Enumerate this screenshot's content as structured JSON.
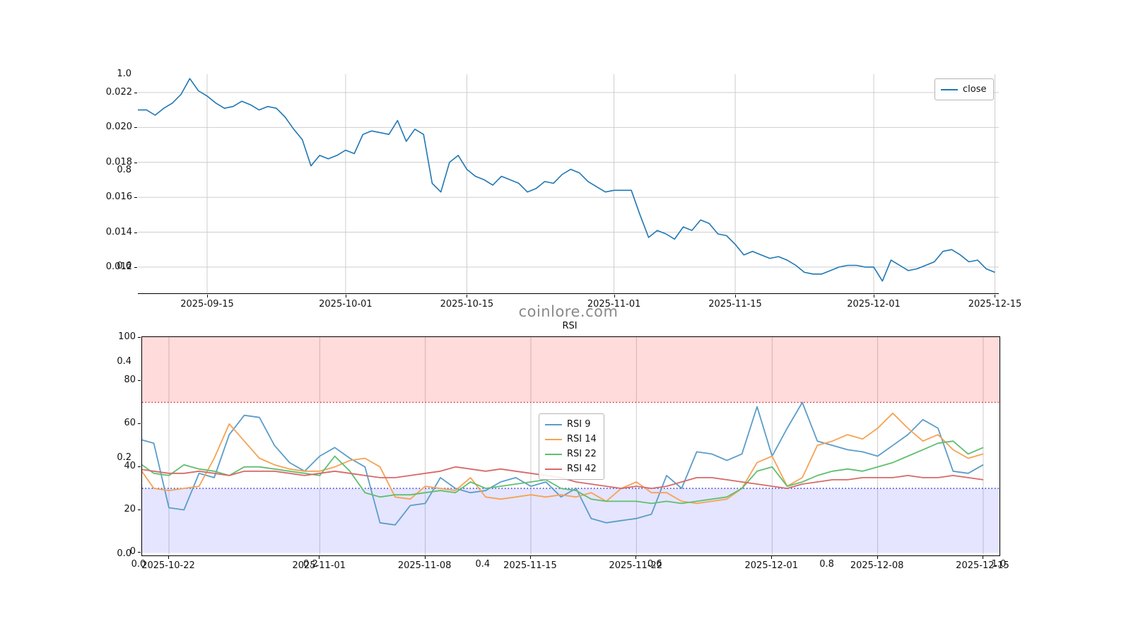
{
  "watermark": "coinlore.com",
  "colors": {
    "close": "#1f77b4",
    "rsi9": "#5b9dc9",
    "rsi14": "#f6a254",
    "rsi22": "#5fbf6f",
    "rsi42": "#d76a6a",
    "grid": "#c8c8c8",
    "overbought_fill": "rgba(255,0,0,0.14)",
    "oversold_fill": "rgba(40,40,255,0.12)",
    "overbought_line": "#dd2222",
    "oversold_line": "#2222cc"
  },
  "overlay_axis": {
    "y_labels": [
      "1.0",
      "0.8",
      "0.6",
      "0.4",
      "0.2",
      "0.0"
    ],
    "x_labels": [
      "0.0",
      "0.2",
      "0.4",
      "0.6",
      "0.8",
      "1.0"
    ]
  },
  "chart_data": [
    {
      "name": "price",
      "type": "line",
      "title": "",
      "legend_position": "upper right",
      "grid": true,
      "ylim": [
        0.0105,
        0.0231
      ],
      "x_ticks": [
        "2025-09-15",
        "2025-10-01",
        "2025-10-15",
        "2025-11-01",
        "2025-11-15",
        "2025-12-01",
        "2025-12-15"
      ],
      "y_ticks": [
        "0.022",
        "0.020",
        "0.018",
        "0.016",
        "0.014",
        "0.012"
      ],
      "dates": [
        "2025-09-07",
        "2025-09-08",
        "2025-09-09",
        "2025-09-10",
        "2025-09-11",
        "2025-09-12",
        "2025-09-13",
        "2025-09-14",
        "2025-09-15",
        "2025-09-16",
        "2025-09-17",
        "2025-09-18",
        "2025-09-19",
        "2025-09-20",
        "2025-09-21",
        "2025-09-22",
        "2025-09-23",
        "2025-09-24",
        "2025-09-25",
        "2025-09-26",
        "2025-09-27",
        "2025-09-28",
        "2025-09-29",
        "2025-09-30",
        "2025-10-01",
        "2025-10-02",
        "2025-10-03",
        "2025-10-04",
        "2025-10-05",
        "2025-10-06",
        "2025-10-07",
        "2025-10-08",
        "2025-10-09",
        "2025-10-10",
        "2025-10-11",
        "2025-10-12",
        "2025-10-13",
        "2025-10-14",
        "2025-10-15",
        "2025-10-16",
        "2025-10-17",
        "2025-10-18",
        "2025-10-19",
        "2025-10-20",
        "2025-10-21",
        "2025-10-22",
        "2025-10-23",
        "2025-10-24",
        "2025-10-25",
        "2025-10-26",
        "2025-10-27",
        "2025-10-28",
        "2025-10-29",
        "2025-10-30",
        "2025-10-31",
        "2025-11-01",
        "2025-11-02",
        "2025-11-03",
        "2025-11-04",
        "2025-11-05",
        "2025-11-06",
        "2025-11-07",
        "2025-11-08",
        "2025-11-09",
        "2025-11-10",
        "2025-11-11",
        "2025-11-12",
        "2025-11-13",
        "2025-11-14",
        "2025-11-15",
        "2025-11-16",
        "2025-11-17",
        "2025-11-18",
        "2025-11-19",
        "2025-11-20",
        "2025-11-21",
        "2025-11-22",
        "2025-11-23",
        "2025-11-24",
        "2025-11-25",
        "2025-11-26",
        "2025-11-27",
        "2025-11-28",
        "2025-11-29",
        "2025-11-30",
        "2025-12-01",
        "2025-12-02",
        "2025-12-03",
        "2025-12-04",
        "2025-12-05",
        "2025-12-06",
        "2025-12-07",
        "2025-12-08",
        "2025-12-09",
        "2025-12-10",
        "2025-12-11",
        "2025-12-12",
        "2025-12-13",
        "2025-12-14",
        "2025-12-15"
      ],
      "series": [
        {
          "name": "close",
          "color": "#1f77b4",
          "values": [
            0.021,
            0.021,
            0.0207,
            0.0211,
            0.0214,
            0.0219,
            0.0228,
            0.0221,
            0.0218,
            0.0214,
            0.0211,
            0.0212,
            0.0215,
            0.0213,
            0.021,
            0.0212,
            0.0211,
            0.0206,
            0.0199,
            0.0193,
            0.0178,
            0.0184,
            0.0182,
            0.0184,
            0.0187,
            0.0185,
            0.0196,
            0.0198,
            0.0197,
            0.0196,
            0.0204,
            0.0192,
            0.0199,
            0.0196,
            0.0168,
            0.0163,
            0.018,
            0.0184,
            0.0176,
            0.0172,
            0.017,
            0.0167,
            0.0172,
            0.017,
            0.0168,
            0.0163,
            0.0165,
            0.0169,
            0.0168,
            0.0173,
            0.0176,
            0.0174,
            0.0169,
            0.0166,
            0.0163,
            0.0164,
            0.0164,
            0.0164,
            0.015,
            0.0137,
            0.0141,
            0.0139,
            0.0136,
            0.0143,
            0.0141,
            0.0147,
            0.0145,
            0.0139,
            0.0138,
            0.0133,
            0.0127,
            0.0129,
            0.0127,
            0.0125,
            0.0126,
            0.0124,
            0.0121,
            0.0117,
            0.0116,
            0.0116,
            0.0118,
            0.012,
            0.0121,
            0.0121,
            0.012,
            0.012,
            0.0112,
            0.0124,
            0.0121,
            0.0118,
            0.0119,
            0.0121,
            0.0123,
            0.0129,
            0.013,
            0.0127,
            0.0123,
            0.0124,
            0.0119,
            0.0117
          ]
        }
      ]
    },
    {
      "name": "rsi",
      "type": "line",
      "title": "RSI",
      "legend_position": "center",
      "grid": true,
      "ylim": [
        0,
        100
      ],
      "overbought": 70,
      "oversold": 30,
      "x_ticks": [
        "2025-10-22",
        "2025-11-01",
        "2025-11-08",
        "2025-11-15",
        "2025-11-22",
        "2025-12-01",
        "2025-12-08",
        "2025-12-15"
      ],
      "y_ticks": [
        "100",
        "80",
        "60",
        "40",
        "20",
        "0"
      ],
      "dates": [
        "2025-10-20",
        "2025-10-21",
        "2025-10-22",
        "2025-10-23",
        "2025-10-24",
        "2025-10-25",
        "2025-10-26",
        "2025-10-27",
        "2025-10-28",
        "2025-10-29",
        "2025-10-30",
        "2025-10-31",
        "2025-11-01",
        "2025-11-02",
        "2025-11-03",
        "2025-11-04",
        "2025-11-05",
        "2025-11-06",
        "2025-11-07",
        "2025-11-08",
        "2025-11-09",
        "2025-11-10",
        "2025-11-11",
        "2025-11-12",
        "2025-11-13",
        "2025-11-14",
        "2025-11-15",
        "2025-11-16",
        "2025-11-17",
        "2025-11-18",
        "2025-11-19",
        "2025-11-20",
        "2025-11-21",
        "2025-11-22",
        "2025-11-23",
        "2025-11-24",
        "2025-11-25",
        "2025-11-26",
        "2025-11-27",
        "2025-11-28",
        "2025-11-29",
        "2025-11-30",
        "2025-12-01",
        "2025-12-02",
        "2025-12-03",
        "2025-12-04",
        "2025-12-05",
        "2025-12-06",
        "2025-12-07",
        "2025-12-08",
        "2025-12-09",
        "2025-12-10",
        "2025-12-11",
        "2025-12-12",
        "2025-12-13",
        "2025-12-14",
        "2025-12-15"
      ],
      "series": [
        {
          "name": "RSI 9",
          "color": "#5b9dc9",
          "values": [
            53,
            51,
            21,
            20,
            37,
            35,
            55,
            64,
            63,
            50,
            42,
            38,
            45,
            49,
            44,
            40,
            14,
            13,
            22,
            23,
            35,
            30,
            28,
            29,
            33,
            35,
            31,
            33,
            26,
            30,
            16,
            14,
            15,
            16,
            18,
            36,
            30,
            47,
            46,
            43,
            46,
            68,
            45,
            58,
            70,
            52,
            50,
            48,
            47,
            45,
            50,
            55,
            62,
            58,
            38,
            37,
            41
          ]
        },
        {
          "name": "RSI 14",
          "color": "#f6a254",
          "values": [
            40,
            30,
            29,
            30,
            31,
            44,
            60,
            52,
            44,
            41,
            39,
            38,
            38,
            40,
            43,
            44,
            40,
            26,
            25,
            31,
            30,
            29,
            35,
            26,
            25,
            26,
            27,
            26,
            27,
            26,
            28,
            24,
            30,
            33,
            28,
            28,
            24,
            23,
            24,
            25,
            30,
            42,
            45,
            31,
            35,
            50,
            52,
            55,
            53,
            58,
            65,
            58,
            52,
            55,
            48,
            44,
            46
          ]
        },
        {
          "name": "RSI 22",
          "color": "#5fbf6f",
          "values": [
            42,
            37,
            36,
            41,
            39,
            38,
            36,
            40,
            40,
            39,
            38,
            37,
            36,
            45,
            38,
            28,
            26,
            27,
            27,
            28,
            29,
            28,
            33,
            30,
            31,
            32,
            33,
            34,
            30,
            29,
            25,
            24,
            24,
            24,
            23,
            24,
            23,
            24,
            25,
            26,
            30,
            38,
            40,
            31,
            33,
            36,
            38,
            39,
            38,
            40,
            42,
            45,
            48,
            51,
            52,
            46,
            49
          ]
        },
        {
          "name": "RSI 42",
          "color": "#d76a6a",
          "values": [
            39,
            38,
            37,
            37,
            38,
            37,
            36,
            38,
            38,
            38,
            37,
            36,
            37,
            38,
            37,
            36,
            35,
            35,
            36,
            37,
            38,
            40,
            39,
            38,
            39,
            38,
            37,
            36,
            35,
            33,
            32,
            31,
            30,
            31,
            30,
            31,
            33,
            35,
            35,
            34,
            33,
            32,
            31,
            30,
            32,
            33,
            34,
            34,
            35,
            35,
            35,
            36,
            35,
            35,
            36,
            35,
            34
          ]
        }
      ]
    }
  ]
}
